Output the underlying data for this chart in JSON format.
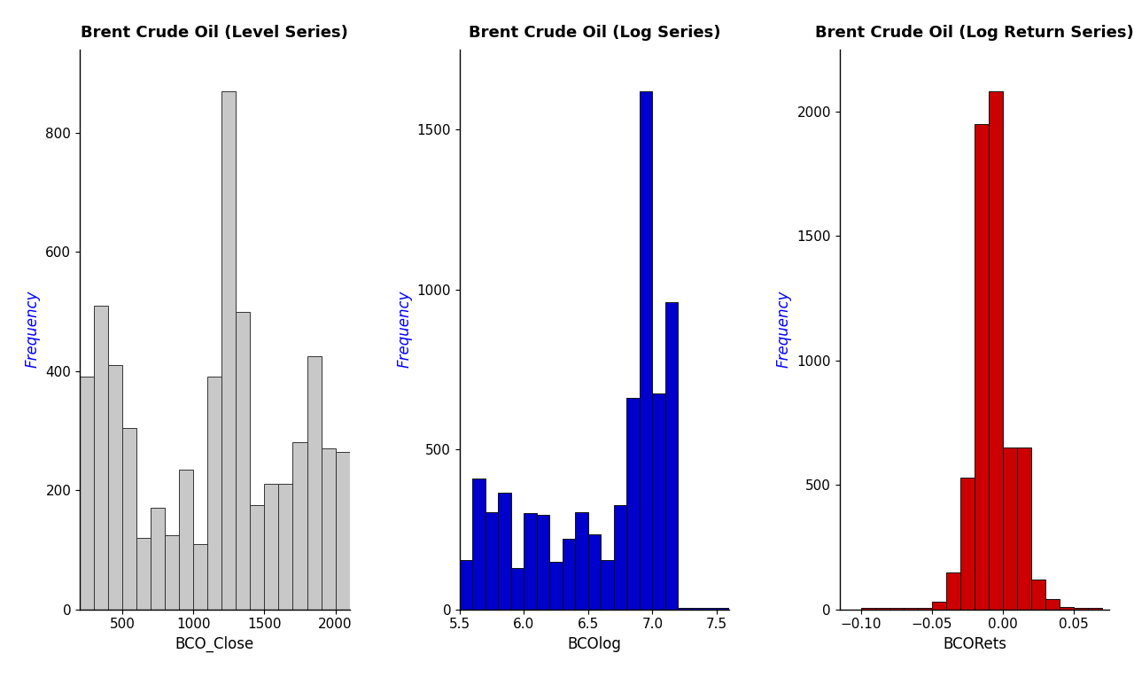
{
  "panel1": {
    "title": "Brent Crude Oil (Level Series)",
    "xlabel": "BCO_Close",
    "ylabel": "Frequency",
    "color": "#c8c8c8",
    "edgecolor": "#333333",
    "bar_edges": [
      200,
      300,
      400,
      500,
      600,
      700,
      800,
      900,
      1000,
      1100,
      1200,
      1300,
      1400,
      1500,
      1600,
      1700,
      1800,
      1900,
      2000,
      2100
    ],
    "bar_heights": [
      390,
      510,
      410,
      305,
      120,
      170,
      125,
      235,
      110,
      390,
      870,
      500,
      175,
      210,
      210,
      280,
      425,
      270,
      265
    ],
    "ylim": [
      0,
      940
    ],
    "yticks": [
      0,
      200,
      400,
      600,
      800
    ],
    "xlim": [
      200,
      2100
    ],
    "xticks": [
      500,
      1000,
      1500,
      2000
    ]
  },
  "panel2": {
    "title": "Brent Crude Oil (Log Series)",
    "xlabel": "BCOlog",
    "ylabel": "Frequency",
    "color": "#0000cc",
    "edgecolor": "#111111",
    "bar_edges": [
      5.5,
      5.6,
      5.7,
      5.8,
      5.9,
      6.0,
      6.1,
      6.2,
      6.3,
      6.4,
      6.5,
      6.6,
      6.7,
      6.8,
      6.9,
      7.0,
      7.1,
      7.2,
      7.3,
      7.4,
      7.5,
      7.6
    ],
    "bar_heights": [
      155,
      410,
      305,
      365,
      130,
      300,
      295,
      150,
      220,
      305,
      235,
      155,
      325,
      660,
      1620,
      675,
      960,
      5,
      5,
      5,
      5
    ],
    "ylim": [
      0,
      1750
    ],
    "yticks": [
      0,
      500,
      1000,
      1500
    ],
    "xlim": [
      5.5,
      7.6
    ],
    "xticks": [
      5.5,
      6.0,
      6.5,
      7.0,
      7.5
    ]
  },
  "panel3": {
    "title": "Brent Crude Oil (Log Return Series)",
    "xlabel": "BCORets",
    "ylabel": "Frequency",
    "color": "#cc0000",
    "edgecolor": "#111111",
    "bar_edges": [
      -0.1,
      -0.09,
      -0.08,
      -0.07,
      -0.06,
      -0.05,
      -0.04,
      -0.03,
      -0.02,
      -0.01,
      0.0,
      0.01,
      0.02,
      0.03,
      0.04,
      0.05,
      0.06,
      0.07
    ],
    "bar_heights": [
      5,
      5,
      5,
      5,
      5,
      30,
      150,
      530,
      1950,
      2080,
      650,
      650,
      120,
      40,
      10,
      5,
      5
    ],
    "ylim": [
      0,
      2250
    ],
    "yticks": [
      0,
      500,
      1000,
      1500,
      2000
    ],
    "xlim": [
      -0.115,
      0.075
    ],
    "xticks": [
      -0.1,
      -0.05,
      0.0,
      0.05
    ]
  },
  "background_color": "#ffffff",
  "title_fontsize": 13,
  "axis_label_fontsize": 12,
  "tick_fontsize": 11
}
